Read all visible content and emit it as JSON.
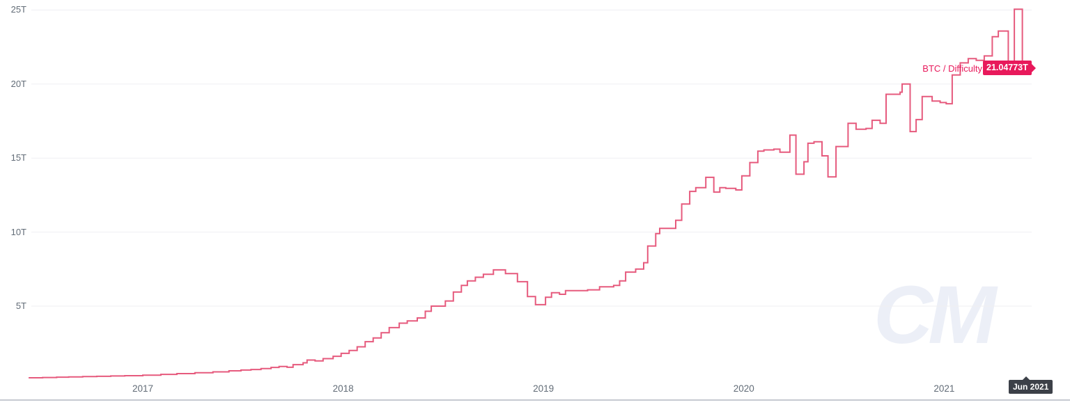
{
  "tooltip": {
    "series_label": "BTC / Difficulty",
    "current_value": "21.04773T",
    "current_date": "Jun 2021"
  },
  "watermark": "CM",
  "colors": {
    "line": "#e65a7d",
    "accent_badge": "#e8195b",
    "date_badge_bg": "#3c4048",
    "axis_text": "#626c77",
    "gridline": "#efeff2",
    "axis_border": "#c6cad1",
    "watermark": "#eceff7",
    "background": "#ffffff"
  },
  "chart_data": {
    "type": "line",
    "interpolation": "step-after",
    "title": "BTC / Difficulty",
    "xlabel": "",
    "ylabel": "",
    "unit": "T",
    "grid": "horizontal",
    "legend_position": "none",
    "xlim": [
      2016.42,
      2021.44
    ],
    "ylim": [
      0,
      25.8
    ],
    "y_ticks": [
      {
        "label": "25T",
        "value": 25
      },
      {
        "label": "20T",
        "value": 20
      },
      {
        "label": "15T",
        "value": 15
      },
      {
        "label": "10T",
        "value": 10
      },
      {
        "label": "5T",
        "value": 5
      }
    ],
    "x_ticks": [
      {
        "label": "2017",
        "value": 2017
      },
      {
        "label": "2018",
        "value": 2018
      },
      {
        "label": "2019",
        "value": 2019
      },
      {
        "label": "2020",
        "value": 2020
      },
      {
        "label": "2021",
        "value": 2021
      }
    ],
    "series": [
      {
        "name": "BTC / Difficulty",
        "unit": "T",
        "final_value": 21.04773,
        "points": [
          [
            2016.43,
            0.16
          ],
          [
            2016.5,
            0.18
          ],
          [
            2016.57,
            0.2
          ],
          [
            2016.63,
            0.22
          ],
          [
            2016.7,
            0.24
          ],
          [
            2016.77,
            0.26
          ],
          [
            2016.84,
            0.28
          ],
          [
            2016.91,
            0.3
          ],
          [
            2017.0,
            0.34
          ],
          [
            2017.09,
            0.39
          ],
          [
            2017.17,
            0.44
          ],
          [
            2017.26,
            0.5
          ],
          [
            2017.35,
            0.56
          ],
          [
            2017.43,
            0.63
          ],
          [
            2017.49,
            0.68
          ],
          [
            2017.54,
            0.72
          ],
          [
            2017.59,
            0.78
          ],
          [
            2017.64,
            0.86
          ],
          [
            2017.68,
            0.92
          ],
          [
            2017.72,
            0.87
          ],
          [
            2017.75,
            1.05
          ],
          [
            2017.8,
            1.17
          ],
          [
            2017.82,
            1.36
          ],
          [
            2017.86,
            1.3
          ],
          [
            2017.9,
            1.45
          ],
          [
            2017.95,
            1.61
          ],
          [
            2017.99,
            1.81
          ],
          [
            2018.03,
            2.0
          ],
          [
            2018.07,
            2.25
          ],
          [
            2018.11,
            2.6
          ],
          [
            2018.15,
            2.85
          ],
          [
            2018.19,
            3.2
          ],
          [
            2018.23,
            3.55
          ],
          [
            2018.28,
            3.85
          ],
          [
            2018.32,
            4.0
          ],
          [
            2018.37,
            4.2
          ],
          [
            2018.41,
            4.65
          ],
          [
            2018.44,
            5.0
          ],
          [
            2018.51,
            5.35
          ],
          [
            2018.55,
            5.95
          ],
          [
            2018.59,
            6.4
          ],
          [
            2018.62,
            6.7
          ],
          [
            2018.66,
            6.95
          ],
          [
            2018.7,
            7.15
          ],
          [
            2018.75,
            7.45
          ],
          [
            2018.81,
            7.2
          ],
          [
            2018.87,
            6.65
          ],
          [
            2018.92,
            5.65
          ],
          [
            2018.96,
            5.1
          ],
          [
            2019.01,
            5.6
          ],
          [
            2019.04,
            5.9
          ],
          [
            2019.08,
            5.8
          ],
          [
            2019.11,
            6.05
          ],
          [
            2019.22,
            6.1
          ],
          [
            2019.28,
            6.3
          ],
          [
            2019.35,
            6.4
          ],
          [
            2019.38,
            6.7
          ],
          [
            2019.41,
            7.3
          ],
          [
            2019.46,
            7.5
          ],
          [
            2019.5,
            7.93
          ],
          [
            2019.52,
            9.06
          ],
          [
            2019.56,
            9.9
          ],
          [
            2019.58,
            10.25
          ],
          [
            2019.66,
            10.8
          ],
          [
            2019.69,
            11.9
          ],
          [
            2019.73,
            12.75
          ],
          [
            2019.76,
            13.0
          ],
          [
            2019.81,
            13.7
          ],
          [
            2019.85,
            12.7
          ],
          [
            2019.88,
            13.0
          ],
          [
            2019.91,
            12.95
          ],
          [
            2019.96,
            12.85
          ],
          [
            2019.99,
            13.8
          ],
          [
            2020.03,
            14.7
          ],
          [
            2020.07,
            15.47
          ],
          [
            2020.1,
            15.55
          ],
          [
            2020.15,
            15.6
          ],
          [
            2020.18,
            15.4
          ],
          [
            2020.23,
            16.55
          ],
          [
            2020.26,
            13.91
          ],
          [
            2020.3,
            14.75
          ],
          [
            2020.32,
            16.0
          ],
          [
            2020.35,
            16.1
          ],
          [
            2020.39,
            15.15
          ],
          [
            2020.42,
            13.73
          ],
          [
            2020.46,
            15.78
          ],
          [
            2020.52,
            17.35
          ],
          [
            2020.56,
            16.95
          ],
          [
            2020.61,
            17.0
          ],
          [
            2020.64,
            17.55
          ],
          [
            2020.68,
            17.35
          ],
          [
            2020.71,
            19.31
          ],
          [
            2020.78,
            19.45
          ],
          [
            2020.79,
            20.0
          ],
          [
            2020.83,
            16.79
          ],
          [
            2020.86,
            17.6
          ],
          [
            2020.89,
            19.16
          ],
          [
            2020.94,
            18.85
          ],
          [
            2020.98,
            18.75
          ],
          [
            2021.01,
            18.67
          ],
          [
            2021.04,
            20.61
          ],
          [
            2021.08,
            21.43
          ],
          [
            2021.12,
            21.72
          ],
          [
            2021.16,
            21.6
          ],
          [
            2021.2,
            21.9
          ],
          [
            2021.24,
            23.2
          ],
          [
            2021.27,
            23.58
          ],
          [
            2021.32,
            21.45
          ],
          [
            2021.35,
            25.05
          ],
          [
            2021.39,
            21.05
          ]
        ]
      }
    ]
  }
}
